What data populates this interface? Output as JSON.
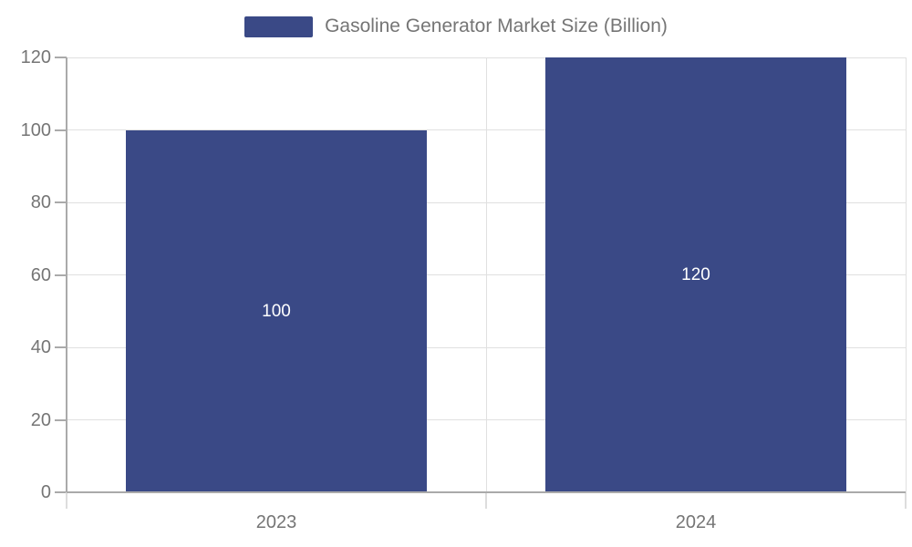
{
  "legend": {
    "label": "Gasoline Generator Market Size (Billion)"
  },
  "colors": {
    "bar": "#3a4986",
    "grid": "#e0e0e0",
    "axis": "#aaaaaa",
    "y_tick": "#aaaaaa",
    "x_tick": "#dddddd",
    "text": "#757575",
    "bar_label": "#ffffff"
  },
  "chart_data": {
    "type": "bar",
    "categories": [
      "2023",
      "2024"
    ],
    "series": [
      {
        "name": "Gasoline Generator Market Size (Billion)",
        "values": [
          100,
          120
        ]
      }
    ],
    "title": "",
    "xlabel": "",
    "ylabel": "",
    "ylim": [
      0,
      120
    ],
    "yticks": [
      0,
      20,
      40,
      60,
      80,
      100,
      120
    ],
    "grid": true,
    "legend_position": "top-center",
    "bar_value_labels": [
      "100",
      "120"
    ],
    "bar_label_position": "inside-center"
  }
}
